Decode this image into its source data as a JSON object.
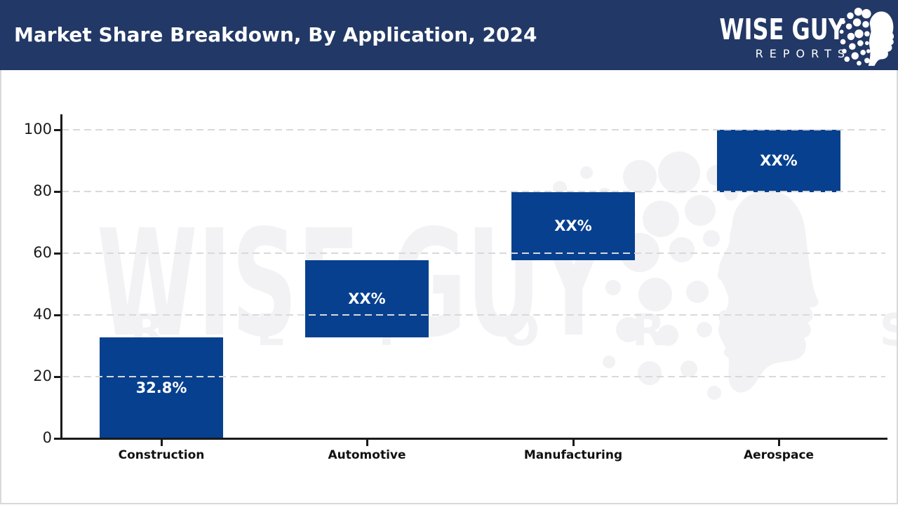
{
  "header": {
    "title": "Market Share Breakdown, By Application, 2024",
    "logo": {
      "line1": "WISE GUY",
      "line2": "REPORTS"
    }
  },
  "watermark": {
    "line1": "WISE GUY",
    "line2": "R E P O R T S"
  },
  "colors": {
    "header_bg": "#223866",
    "bar": "#07408f",
    "grid": "#d9d9d9",
    "axis": "#1a1a1a",
    "title_text": "#ffffff",
    "bar_label_text": "#ffffff",
    "watermark": "#f2f2f4"
  },
  "chart_data": {
    "type": "bar",
    "subtype": "waterfall",
    "title": "Market Share Breakdown, By Application, 2024",
    "categories": [
      "Construction",
      "Automotive",
      "Manufacturing",
      "Aerospace"
    ],
    "segments": [
      {
        "category": "Construction",
        "start": 0,
        "end": 32.8,
        "value": 32.8,
        "label": "32.8%"
      },
      {
        "category": "Automotive",
        "start": 32.8,
        "end": 57.8,
        "value": 25.0,
        "label": "XX%"
      },
      {
        "category": "Manufacturing",
        "start": 57.8,
        "end": 79.8,
        "value": 22.0,
        "label": "XX%"
      },
      {
        "category": "Aerospace",
        "start": 79.8,
        "end": 100,
        "value": 20.2,
        "label": "XX%"
      }
    ],
    "ylim": [
      0,
      100
    ],
    "yticks": [
      0,
      20,
      40,
      60,
      80,
      100
    ],
    "xlabel": "",
    "ylabel": "",
    "grid": "horizontal-dashed",
    "legend": null,
    "bar_color": "#07408f"
  }
}
